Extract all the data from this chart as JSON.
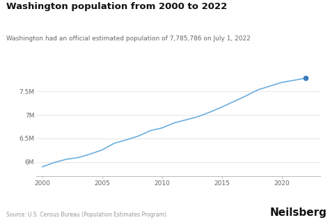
{
  "title": "Washington population from 2000 to 2022",
  "subtitle": "Washington had an official estimated population of 7,785,786 on July 1, 2022",
  "source": "Source: U.S. Census Bureau (Population Estimates Program)",
  "brand": "Neilsberg",
  "years": [
    2000,
    2001,
    2002,
    2003,
    2004,
    2005,
    2006,
    2007,
    2008,
    2009,
    2010,
    2011,
    2012,
    2013,
    2014,
    2015,
    2016,
    2017,
    2018,
    2019,
    2020,
    2021,
    2022
  ],
  "population": [
    5894121,
    5987973,
    6055724,
    6093000,
    6168000,
    6256000,
    6395798,
    6468424,
    6549224,
    6664195,
    6724540,
    6830038,
    6897058,
    6963985,
    7061530,
    7169967,
    7288000,
    7405743,
    7535591,
    7614893,
    7693612,
    7738692,
    7785786
  ],
  "line_color": "#6aaee0",
  "dot_color": "#3a7bbf",
  "background_color": "#ffffff",
  "title_fontsize": 9.5,
  "subtitle_fontsize": 6.5,
  "source_fontsize": 5.5,
  "brand_fontsize": 11,
  "ytick_labels": [
    "6M",
    "6.5M",
    "7M",
    "7.5M"
  ],
  "ytick_values": [
    6000000,
    6500000,
    7000000,
    7500000
  ],
  "xtick_values": [
    2000,
    2005,
    2010,
    2015,
    2020
  ],
  "ylim": [
    5700000,
    7950000
  ],
  "xlim": [
    1999.5,
    2023.2
  ]
}
